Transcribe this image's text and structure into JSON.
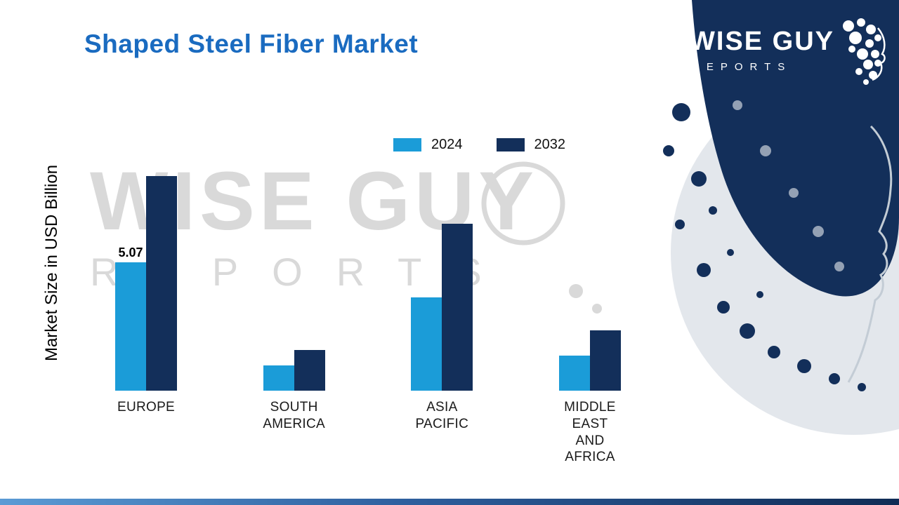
{
  "page": {
    "title": "Shaped Steel Fiber Market"
  },
  "branding": {
    "logo_line1": "WISE GUY",
    "logo_line2": "REPORTS",
    "watermark_line1": "WISE GUY",
    "watermark_line2": "REPORTS"
  },
  "colors": {
    "title_blue": "#1a6bc0",
    "series_2024": "#1b9cd8",
    "series_2032": "#132f5a",
    "navy_blob": "#132f5a",
    "watermark_gray": "#d9d9d9"
  },
  "chart_data": {
    "type": "bar",
    "title": "Shaped Steel Fiber Market",
    "xlabel": "",
    "ylabel": "Market Size in USD Billion",
    "ylim": [
      0,
      9
    ],
    "grid": false,
    "legend_position": "top",
    "categories": [
      "EUROPE",
      "SOUTH AMERICA",
      "ASIA PACIFIC",
      "MIDDLE EAST AND AFRICA"
    ],
    "series": [
      {
        "name": "2024",
        "color": "#1b9cd8",
        "values": [
          5.07,
          1.0,
          3.7,
          1.4
        ],
        "labels": [
          "5.07",
          null,
          null,
          null
        ]
      },
      {
        "name": "2032",
        "color": "#132f5a",
        "values": [
          8.5,
          1.6,
          6.6,
          2.4
        ],
        "labels": [
          null,
          null,
          null,
          null
        ]
      }
    ]
  }
}
